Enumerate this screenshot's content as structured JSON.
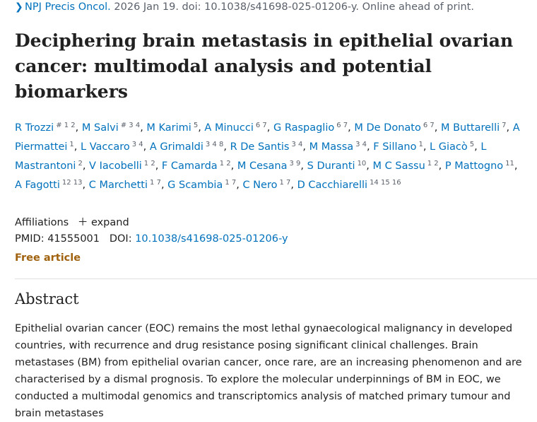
{
  "citation": {
    "journal": "NPJ Precis Oncol.",
    "details": " 2026 Jan 19. doi: 10.1038/s41698-025-01206-y. Online ahead of print."
  },
  "title": "Deciphering brain metastasis in epithelial ovarian cancer: multimodal analysis and potential biomarkers",
  "authors": [
    {
      "name": "R Trozzi",
      "sup": "# 1 2"
    },
    {
      "name": "M Salvi",
      "sup": "# 3 4"
    },
    {
      "name": "M Karimi",
      "sup": "5"
    },
    {
      "name": "A Minucci",
      "sup": "6 7"
    },
    {
      "name": "G Raspaglio",
      "sup": "6 7"
    },
    {
      "name": "M De Donato",
      "sup": "6 7"
    },
    {
      "name": "M Buttarelli",
      "sup": "7"
    },
    {
      "name": "A Piermattei",
      "sup": "1"
    },
    {
      "name": "L Vaccaro",
      "sup": "3 4"
    },
    {
      "name": "A Grimaldi",
      "sup": "3 4 8"
    },
    {
      "name": "R De Santis",
      "sup": "3 4"
    },
    {
      "name": "M Massa",
      "sup": "3 4"
    },
    {
      "name": "F Sillano",
      "sup": "1"
    },
    {
      "name": "L Giacò",
      "sup": "5"
    },
    {
      "name": "L Mastrantoni",
      "sup": "2"
    },
    {
      "name": "V Iacobelli",
      "sup": "1 2"
    },
    {
      "name": "F Camarda",
      "sup": "1 2"
    },
    {
      "name": "M Cesana",
      "sup": "3 9"
    },
    {
      "name": "S Duranti",
      "sup": "10"
    },
    {
      "name": "M C Sassu",
      "sup": "1 2"
    },
    {
      "name": "P Mattogno",
      "sup": "11"
    },
    {
      "name": "A Fagotti",
      "sup": "12 13"
    },
    {
      "name": "C Marchetti",
      "sup": "1 7"
    },
    {
      "name": "G Scambia",
      "sup": "1 7"
    },
    {
      "name": "C Nero",
      "sup": "1 7"
    },
    {
      "name": "D Cacchiarelli",
      "sup": "14 15 16"
    }
  ],
  "affiliations": {
    "label": "Affiliations",
    "expand_icon": "plus-icon",
    "expand_label": "expand"
  },
  "identifiers": {
    "pmid_label": "PMID:",
    "pmid": "41555001",
    "doi_label": "DOI:",
    "doi": "10.1038/s41698-025-01206-y"
  },
  "free_article": "Free article",
  "abstract": {
    "heading": "Abstract",
    "text": "Epithelial ovarian cancer (EOC) remains the most lethal gynaecological malignancy in developed countries, with recurrence and drug resistance posing significant clinical challenges. Brain metastases (BM) from epithelial ovarian cancer, once rare, are an increasing phenomenon and are characterised by a dismal prognosis. To explore the molecular underpinnings of BM in EOC, we conducted a multimodal genomics and transcriptomics analysis of matched primary tumour and brain metastases"
  },
  "colors": {
    "link": "#0071bc",
    "free_article": "#a0620f",
    "text": "#212121"
  }
}
